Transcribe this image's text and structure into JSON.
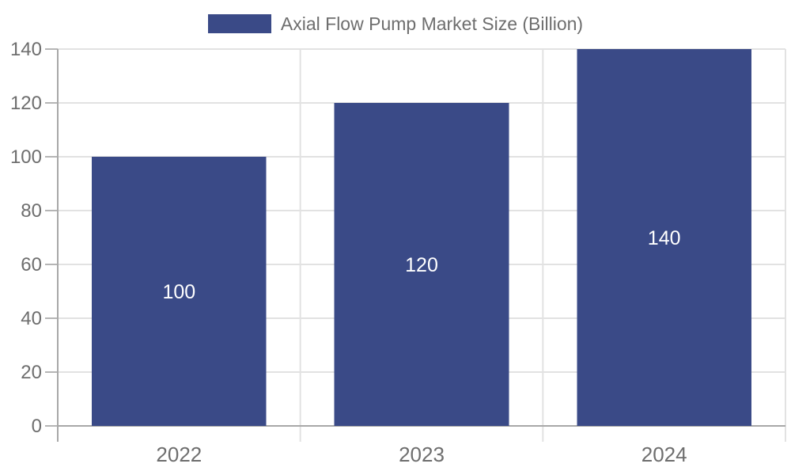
{
  "legend": {
    "label": "Axial Flow Pump Market Size (Billion)"
  },
  "chart_data": {
    "type": "bar",
    "title": "Axial Flow Pump Market Size (Billion)",
    "categories": [
      "2022",
      "2023",
      "2024"
    ],
    "series": [
      {
        "name": "Axial Flow Pump Market Size (Billion)",
        "values": [
          100,
          120,
          140
        ]
      }
    ],
    "data_labels": [
      "100",
      "120",
      "140"
    ],
    "xlabel": "",
    "ylabel": "",
    "ylim": [
      0,
      140
    ],
    "yticks": [
      0,
      20,
      40,
      60,
      80,
      100,
      120,
      140
    ],
    "grid": true,
    "legend_position": "top-center",
    "bar_width_fraction": 0.72
  },
  "colors": {
    "bar": "#3a4a87",
    "legend_text": "#6e6e6e",
    "tick_text": "#6e6e6e",
    "grid_line": "#e2e2e2",
    "axis_line": "#a8a8a8",
    "tick_mark": "#b5b5b5",
    "bar_label": "#ffffff",
    "background": "#ffffff"
  }
}
